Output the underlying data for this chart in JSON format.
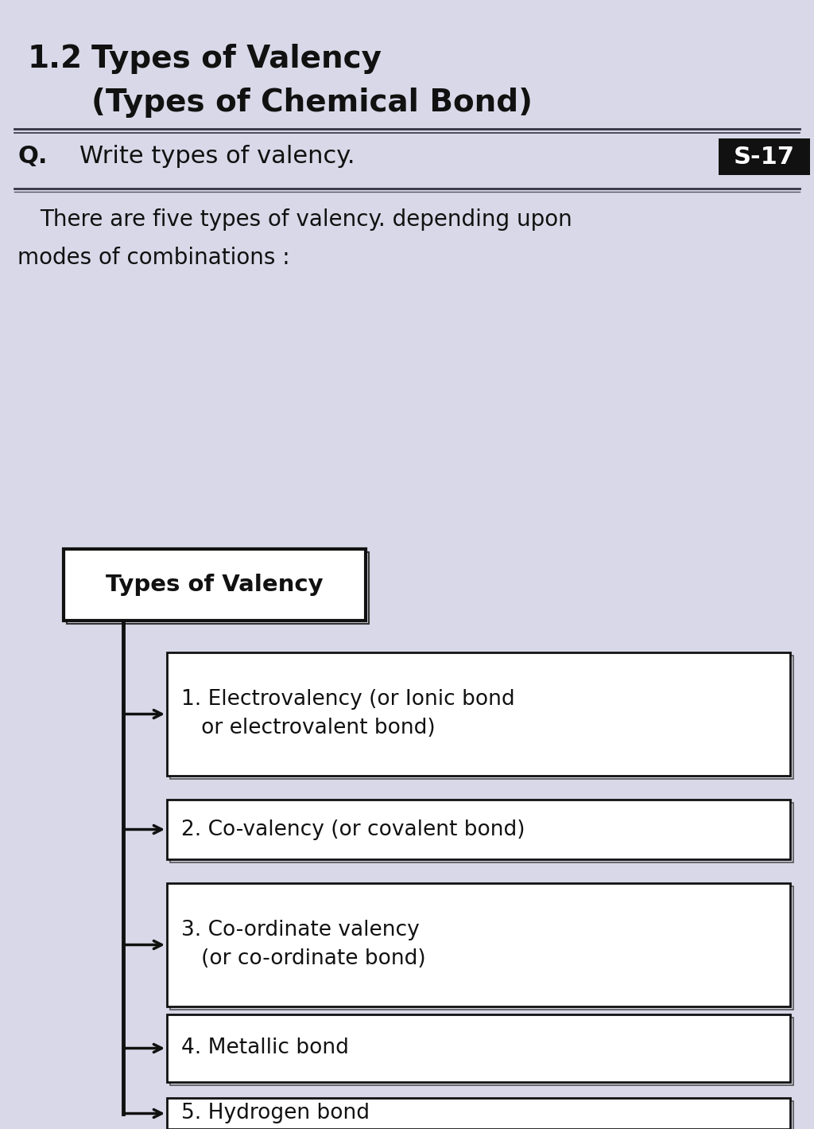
{
  "bg_color": "#d8d8e8",
  "title_number": "1.2",
  "title_line1": "Types of Valency",
  "title_line2": "(Types of Chemical Bond)",
  "question_label": "Q.",
  "question_text": "Write types of valency.",
  "badge_text": "S-17",
  "body_text_line1": "There are five types of valency. depending upon",
  "body_text_line2": "modes of combinations :",
  "diagram_root": "Types of Valency",
  "diagram_items": [
    "1. Electrovalency (or Ionic bond\n   or electrovalent bond)",
    "2. Co-valency (or covalent bond)",
    "3. Co-ordinate valency\n   (or co-ordinate bond)",
    "4. Metallic bond",
    "5. Hydrogen bond"
  ],
  "title_fontsize": 28,
  "subtitle_fontsize": 28,
  "question_fontsize": 22,
  "body_fontsize": 20,
  "diagram_root_fontsize": 21,
  "diagram_item_fontsize": 19
}
